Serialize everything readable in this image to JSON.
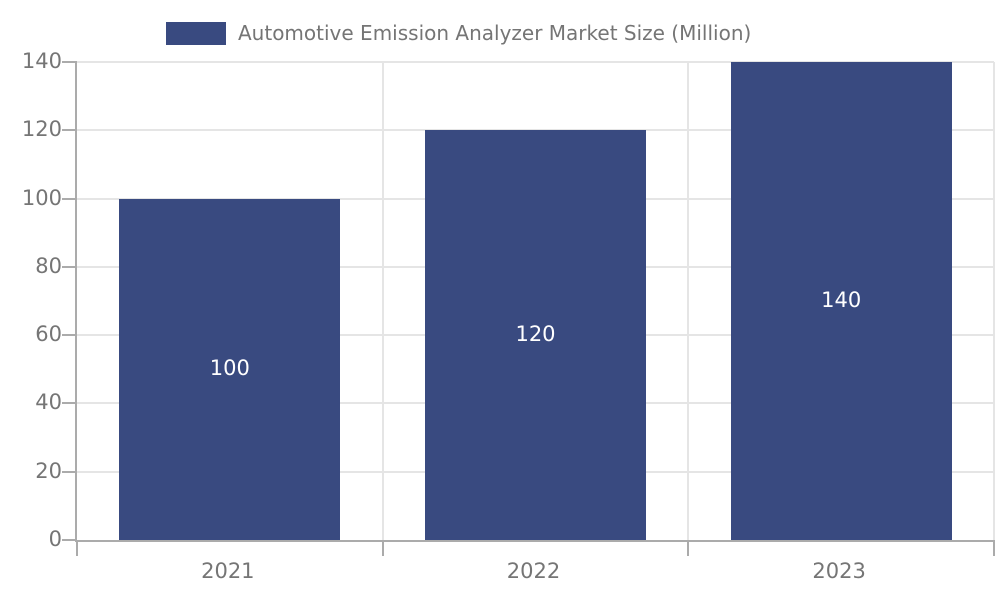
{
  "chart_data": {
    "type": "bar",
    "title": "Automotive Emission Analyzer Market Size (Million)",
    "series_name": "Automotive Emission Analyzer Market Size (Million)",
    "categories": [
      "2021",
      "2022",
      "2023"
    ],
    "values": [
      100,
      120,
      140
    ],
    "bar_labels": [
      "100",
      "120",
      "140"
    ],
    "xlabel": "",
    "ylabel": "",
    "ylim": [
      0,
      140
    ],
    "yticks": [
      0,
      20,
      40,
      60,
      80,
      100,
      120,
      140
    ],
    "grid": true,
    "legend_position": "top",
    "colors": {
      "bar": "#394A80",
      "bar_label": "#FFFFFF",
      "tick_label": "#757575",
      "legend_text": "#757575",
      "grid": "#E5E5E5",
      "spine": "#ABABAB"
    }
  }
}
